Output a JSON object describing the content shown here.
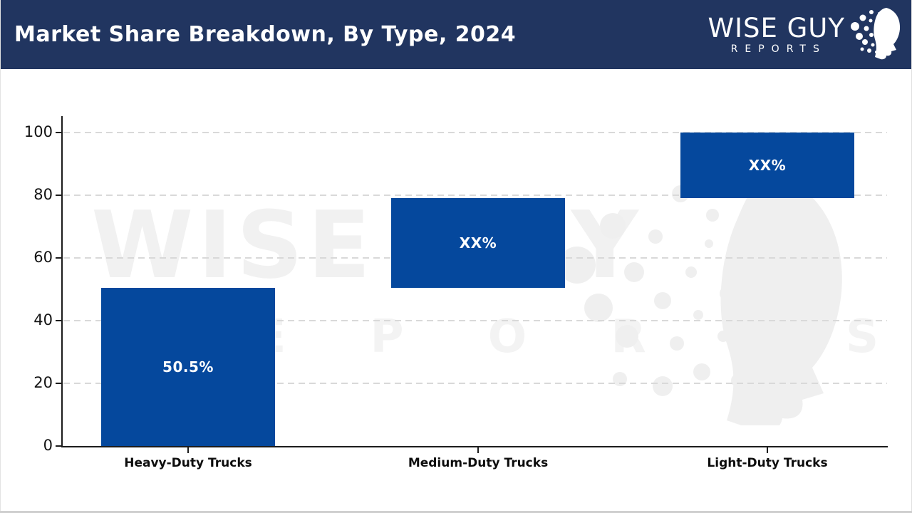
{
  "header": {
    "title": "Market Share Breakdown, By Type, 2024",
    "logo": {
      "line1": "WISE GUY",
      "line2": "REPORTS"
    }
  },
  "watermark": {
    "line1": "WISE GUY",
    "line2": "R E P O R T S"
  },
  "colors": {
    "header_bg": "#213560",
    "bar_fill": "#05489d",
    "bar_label_text": "#ffffff",
    "gridline": "#d9d9d9",
    "axis": "#1c1c1c",
    "watermark": "#f1f1f1"
  },
  "chart_data": {
    "type": "bar",
    "subtype": "waterfall",
    "title": "Market Share Breakdown, By Type, 2024",
    "categories": [
      "Heavy-Duty Trucks",
      "Medium-Duty Trucks",
      "Light-Duty Trucks"
    ],
    "segments": [
      {
        "category": "Heavy-Duty Trucks",
        "start": 0,
        "end": 50.5,
        "value": 50.5,
        "label": "50.5%"
      },
      {
        "category": "Medium-Duty Trucks",
        "start": 50.5,
        "end": 79,
        "value": 28.5,
        "label": "XX%"
      },
      {
        "category": "Light-Duty Trucks",
        "start": 79,
        "end": 100,
        "value": 21,
        "label": "XX%"
      }
    ],
    "yticks": [
      0,
      20,
      40,
      60,
      80,
      100
    ],
    "ylim": [
      0,
      100
    ],
    "xlabel": "",
    "ylabel": "",
    "grid": "horizontal-dashed",
    "legend": "none"
  }
}
